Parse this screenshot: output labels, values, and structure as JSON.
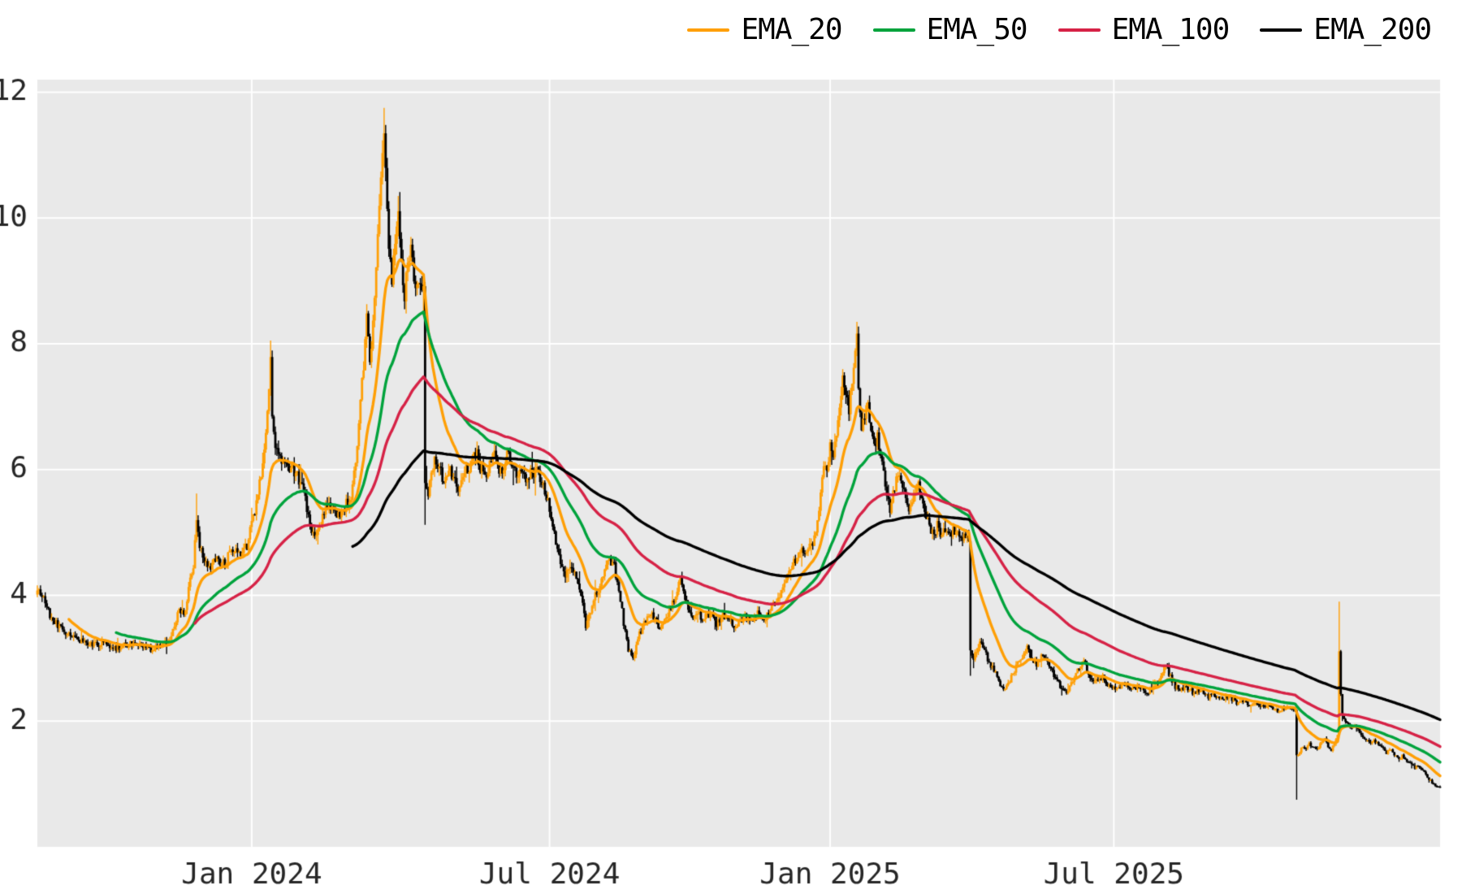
{
  "chart_data": {
    "type": "candlestick",
    "title": "",
    "legend_position": "top-right-outside",
    "x_ticks": [
      {
        "label": "Jan 2024",
        "day": 136
      },
      {
        "label": "Jul 2024",
        "day": 325
      },
      {
        "label": "Jan 2025",
        "day": 503
      },
      {
        "label": "Jul 2025",
        "day": 683
      }
    ],
    "y_ticks": [
      2,
      4,
      6,
      8,
      10,
      12
    ],
    "ylim": [
      0,
      12.2
    ],
    "days_total": 890,
    "grid": true,
    "background": "#ffffff",
    "plot_background": "#e9e9e9",
    "grid_color": "#ffffff",
    "tick_color": "#262626",
    "candle_style": {
      "up_color": "#ff9f05",
      "down_color": "#000000"
    },
    "emas": [
      {
        "name": "EMA_20",
        "period": 20,
        "color": "#ff9f05"
      },
      {
        "name": "EMA_50",
        "period": 50,
        "color": "#00a33c"
      },
      {
        "name": "EMA_100",
        "period": 100,
        "color": "#d62246"
      },
      {
        "name": "EMA_200",
        "period": 200,
        "color": "#000000"
      }
    ],
    "close_price_anchors": [
      [
        0,
        4.15
      ],
      [
        3,
        4.0
      ],
      [
        6,
        3.8
      ],
      [
        9,
        3.65
      ],
      [
        12,
        3.55
      ],
      [
        16,
        3.45
      ],
      [
        20,
        3.35
      ],
      [
        25,
        3.3
      ],
      [
        30,
        3.25
      ],
      [
        36,
        3.2
      ],
      [
        42,
        3.25
      ],
      [
        48,
        3.15
      ],
      [
        54,
        3.2
      ],
      [
        60,
        3.25
      ],
      [
        66,
        3.2
      ],
      [
        72,
        3.15
      ],
      [
        78,
        3.2
      ],
      [
        83,
        3.25
      ],
      [
        87,
        3.5
      ],
      [
        90,
        3.8
      ],
      [
        93,
        3.7
      ],
      [
        96,
        4.1
      ],
      [
        99,
        4.5
      ],
      [
        101,
        5.2
      ],
      [
        103,
        4.75
      ],
      [
        106,
        4.55
      ],
      [
        110,
        4.45
      ],
      [
        114,
        4.6
      ],
      [
        118,
        4.5
      ],
      [
        122,
        4.65
      ],
      [
        126,
        4.75
      ],
      [
        130,
        4.65
      ],
      [
        133,
        4.8
      ],
      [
        136,
        5.1
      ],
      [
        139,
        5.5
      ],
      [
        142,
        5.9
      ],
      [
        145,
        6.5
      ],
      [
        147,
        7.2
      ],
      [
        148,
        7.9
      ],
      [
        149,
        6.9
      ],
      [
        151,
        6.35
      ],
      [
        154,
        6.15
      ],
      [
        158,
        6.05
      ],
      [
        162,
        6.0
      ],
      [
        166,
        5.85
      ],
      [
        170,
        5.55
      ],
      [
        173,
        5.1
      ],
      [
        176,
        4.95
      ],
      [
        179,
        5.1
      ],
      [
        183,
        5.45
      ],
      [
        187,
        5.35
      ],
      [
        191,
        5.25
      ],
      [
        195,
        5.4
      ],
      [
        199,
        5.6
      ],
      [
        202,
        6.1
      ],
      [
        205,
        7.0
      ],
      [
        207,
        7.7
      ],
      [
        209,
        8.4
      ],
      [
        211,
        7.7
      ],
      [
        213,
        8.3
      ],
      [
        215,
        9.2
      ],
      [
        217,
        10.2
      ],
      [
        219,
        11.0
      ],
      [
        220,
        11.5
      ],
      [
        221,
        10.7
      ],
      [
        223,
        9.6
      ],
      [
        225,
        9.1
      ],
      [
        227,
        9.7
      ],
      [
        229,
        10.1
      ],
      [
        231,
        9.3
      ],
      [
        233,
        8.8
      ],
      [
        235,
        9.2
      ],
      [
        237,
        9.5
      ],
      [
        239,
        9.1
      ],
      [
        241,
        8.9
      ],
      [
        244,
        8.95
      ],
      [
        245,
        8.9
      ],
      [
        246,
        5.8
      ],
      [
        248,
        5.6
      ],
      [
        250,
        5.9
      ],
      [
        252,
        6.1
      ],
      [
        255,
        6.0
      ],
      [
        258,
        5.85
      ],
      [
        261,
        6.05
      ],
      [
        264,
        5.9
      ],
      [
        267,
        5.75
      ],
      [
        270,
        5.9
      ],
      [
        273,
        6.0
      ],
      [
        276,
        6.15
      ],
      [
        279,
        6.3
      ],
      [
        281,
        6.05
      ],
      [
        284,
        5.9
      ],
      [
        287,
        6.05
      ],
      [
        290,
        6.2
      ],
      [
        293,
        5.95
      ],
      [
        296,
        6.05
      ],
      [
        299,
        6.3
      ],
      [
        301,
        6.05
      ],
      [
        304,
        5.9
      ],
      [
        307,
        6.0
      ],
      [
        310,
        5.9
      ],
      [
        313,
        5.95
      ],
      [
        317,
        6.0
      ],
      [
        320,
        5.85
      ],
      [
        323,
        5.6
      ],
      [
        326,
        5.3
      ],
      [
        329,
        4.85
      ],
      [
        332,
        4.5
      ],
      [
        335,
        4.3
      ],
      [
        338,
        4.4
      ],
      [
        341,
        4.3
      ],
      [
        344,
        4.15
      ],
      [
        346,
        3.85
      ],
      [
        348,
        3.5
      ],
      [
        350,
        3.7
      ],
      [
        353,
        3.95
      ],
      [
        356,
        4.1
      ],
      [
        359,
        4.3
      ],
      [
        362,
        4.5
      ],
      [
        365,
        4.55
      ],
      [
        368,
        4.25
      ],
      [
        370,
        3.95
      ],
      [
        372,
        3.55
      ],
      [
        375,
        3.15
      ],
      [
        378,
        3.0
      ],
      [
        381,
        3.3
      ],
      [
        384,
        3.5
      ],
      [
        387,
        3.65
      ],
      [
        390,
        3.7
      ],
      [
        393,
        3.55
      ],
      [
        396,
        3.5
      ],
      [
        399,
        3.65
      ],
      [
        402,
        3.8
      ],
      [
        405,
        3.95
      ],
      [
        408,
        4.25
      ],
      [
        410,
        4.05
      ],
      [
        413,
        3.8
      ],
      [
        416,
        3.65
      ],
      [
        419,
        3.72
      ],
      [
        422,
        3.6
      ],
      [
        425,
        3.7
      ],
      [
        428,
        3.65
      ],
      [
        431,
        3.55
      ],
      [
        434,
        3.65
      ],
      [
        437,
        3.7
      ],
      [
        440,
        3.6
      ],
      [
        443,
        3.5
      ],
      [
        446,
        3.6
      ],
      [
        449,
        3.68
      ],
      [
        452,
        3.58
      ],
      [
        455,
        3.66
      ],
      [
        458,
        3.72
      ],
      [
        461,
        3.6
      ],
      [
        464,
        3.75
      ],
      [
        467,
        3.85
      ],
      [
        470,
        3.95
      ],
      [
        474,
        4.15
      ],
      [
        478,
        4.4
      ],
      [
        482,
        4.6
      ],
      [
        486,
        4.75
      ],
      [
        489,
        4.7
      ],
      [
        492,
        4.85
      ],
      [
        495,
        5.2
      ],
      [
        497,
        5.6
      ],
      [
        499,
        6.1
      ],
      [
        501,
        5.95
      ],
      [
        503,
        6.35
      ],
      [
        505,
        6.2
      ],
      [
        507,
        6.6
      ],
      [
        509,
        6.9
      ],
      [
        511,
        7.4
      ],
      [
        513,
        7.2
      ],
      [
        515,
        7.0
      ],
      [
        517,
        7.4
      ],
      [
        519,
        8.0
      ],
      [
        520,
        8.2
      ],
      [
        521,
        7.3
      ],
      [
        523,
        6.6
      ],
      [
        525,
        6.9
      ],
      [
        527,
        7.0
      ],
      [
        529,
        6.6
      ],
      [
        531,
        6.3
      ],
      [
        533,
        6.5
      ],
      [
        535,
        6.2
      ],
      [
        537,
        5.9
      ],
      [
        539,
        5.6
      ],
      [
        541,
        5.4
      ],
      [
        543,
        5.6
      ],
      [
        545,
        5.85
      ],
      [
        547,
        6.0
      ],
      [
        549,
        5.75
      ],
      [
        551,
        5.5
      ],
      [
        553,
        5.3
      ],
      [
        555,
        5.5
      ],
      [
        557,
        5.7
      ],
      [
        559,
        5.85
      ],
      [
        561,
        5.55
      ],
      [
        563,
        5.3
      ],
      [
        565,
        5.15
      ],
      [
        567,
        5.05
      ],
      [
        569,
        5.0
      ],
      [
        571,
        5.1
      ],
      [
        573,
        4.95
      ],
      [
        575,
        5.05
      ],
      [
        577,
        5.0
      ],
      [
        579,
        4.95
      ],
      [
        581,
        5.05
      ],
      [
        583,
        5.0
      ],
      [
        585,
        4.95
      ],
      [
        587,
        4.9
      ],
      [
        589,
        4.95
      ],
      [
        591,
        4.9
      ],
      [
        592,
        3.1
      ],
      [
        594,
        3.0
      ],
      [
        596,
        3.15
      ],
      [
        598,
        3.25
      ],
      [
        600,
        3.15
      ],
      [
        602,
        3.05
      ],
      [
        604,
        2.95
      ],
      [
        607,
        2.8
      ],
      [
        610,
        2.65
      ],
      [
        613,
        2.5
      ],
      [
        616,
        2.6
      ],
      [
        619,
        2.75
      ],
      [
        622,
        2.9
      ],
      [
        625,
        3.05
      ],
      [
        628,
        3.15
      ],
      [
        631,
        3.0
      ],
      [
        634,
        2.9
      ],
      [
        637,
        3.05
      ],
      [
        640,
        2.95
      ],
      [
        643,
        2.85
      ],
      [
        646,
        2.7
      ],
      [
        649,
        2.55
      ],
      [
        652,
        2.45
      ],
      [
        655,
        2.55
      ],
      [
        658,
        2.7
      ],
      [
        661,
        2.85
      ],
      [
        664,
        2.95
      ],
      [
        667,
        2.75
      ],
      [
        670,
        2.6
      ],
      [
        673,
        2.65
      ],
      [
        676,
        2.7
      ],
      [
        679,
        2.6
      ],
      [
        683,
        2.55
      ],
      [
        686,
        2.5
      ],
      [
        689,
        2.6
      ],
      [
        692,
        2.55
      ],
      [
        695,
        2.5
      ],
      [
        698,
        2.55
      ],
      [
        701,
        2.5
      ],
      [
        704,
        2.45
      ],
      [
        707,
        2.5
      ],
      [
        710,
        2.6
      ],
      [
        713,
        2.75
      ],
      [
        716,
        2.9
      ],
      [
        719,
        2.7
      ],
      [
        722,
        2.55
      ],
      [
        725,
        2.5
      ],
      [
        728,
        2.55
      ],
      [
        731,
        2.5
      ],
      [
        734,
        2.45
      ],
      [
        737,
        2.5
      ],
      [
        740,
        2.45
      ],
      [
        743,
        2.4
      ],
      [
        746,
        2.45
      ],
      [
        749,
        2.4
      ],
      [
        752,
        2.35
      ],
      [
        755,
        2.4
      ],
      [
        758,
        2.35
      ],
      [
        761,
        2.3
      ],
      [
        764,
        2.35
      ],
      [
        767,
        2.3
      ],
      [
        770,
        2.25
      ],
      [
        773,
        2.3
      ],
      [
        776,
        2.25
      ],
      [
        779,
        2.2
      ],
      [
        782,
        2.25
      ],
      [
        785,
        2.2
      ],
      [
        788,
        2.15
      ],
      [
        791,
        2.2
      ],
      [
        794,
        2.25
      ],
      [
        798,
        2.2
      ],
      [
        799,
        1.45
      ],
      [
        801,
        1.5
      ],
      [
        803,
        1.6
      ],
      [
        805,
        1.55
      ],
      [
        807,
        1.65
      ],
      [
        809,
        1.6
      ],
      [
        811,
        1.55
      ],
      [
        813,
        1.6
      ],
      [
        815,
        1.65
      ],
      [
        817,
        1.7
      ],
      [
        819,
        1.6
      ],
      [
        821,
        1.55
      ],
      [
        823,
        1.65
      ],
      [
        825,
        1.8
      ],
      [
        826,
        3.1
      ],
      [
        827,
        2.4
      ],
      [
        828,
        2.1
      ],
      [
        830,
        2.0
      ],
      [
        832,
        1.95
      ],
      [
        834,
        1.9
      ],
      [
        836,
        1.95
      ],
      [
        838,
        1.85
      ],
      [
        840,
        1.8
      ],
      [
        842,
        1.75
      ],
      [
        844,
        1.7
      ],
      [
        846,
        1.65
      ],
      [
        848,
        1.7
      ],
      [
        850,
        1.65
      ],
      [
        852,
        1.6
      ],
      [
        854,
        1.55
      ],
      [
        856,
        1.5
      ],
      [
        858,
        1.55
      ],
      [
        860,
        1.5
      ],
      [
        862,
        1.45
      ],
      [
        864,
        1.4
      ],
      [
        866,
        1.45
      ],
      [
        868,
        1.4
      ],
      [
        870,
        1.35
      ],
      [
        872,
        1.3
      ],
      [
        874,
        1.25
      ],
      [
        876,
        1.3
      ],
      [
        878,
        1.25
      ],
      [
        880,
        1.2
      ],
      [
        882,
        1.1
      ],
      [
        884,
        1.05
      ],
      [
        886,
        1.0
      ],
      [
        888,
        0.95
      ],
      [
        890,
        0.95
      ]
    ],
    "wick_events": [
      {
        "day": 101,
        "high": 5.62
      },
      {
        "day": 148,
        "high": 8.05
      },
      {
        "day": 209,
        "high": 8.62
      },
      {
        "day": 220,
        "high": 11.75
      },
      {
        "day": 229,
        "high": 10.35
      },
      {
        "day": 246,
        "low": 5.12
      },
      {
        "day": 520,
        "high": 8.35
      },
      {
        "day": 592,
        "low": 2.72
      },
      {
        "day": 799,
        "low": 0.75
      },
      {
        "day": 826,
        "high": 3.9
      }
    ],
    "noise": {
      "seed": 7,
      "close_amp": 0.018,
      "wick_amp": 0.02
    }
  }
}
